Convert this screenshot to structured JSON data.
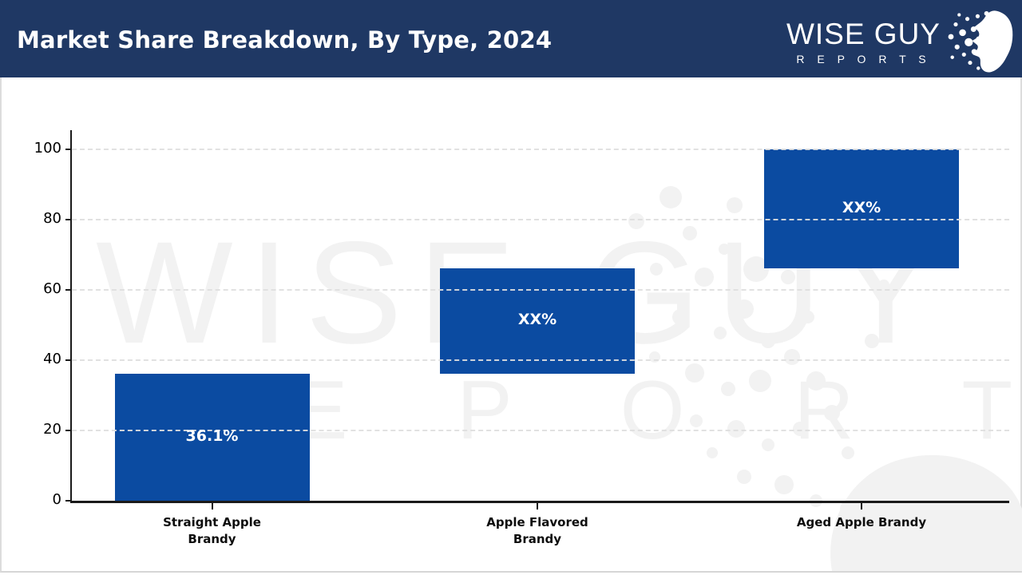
{
  "header": {
    "title": "Market Share Breakdown, By Type, 2024",
    "brand": {
      "name": "WISE GUY",
      "tagline": "R E P O R T S"
    }
  },
  "watermark": {
    "text": "WISE GUY",
    "tagline": "R E P O R T S"
  },
  "colors": {
    "header_bg": "#1f3864",
    "bar": "#0b4ba1",
    "bar_label": "#ffffff",
    "grid": "#dedede",
    "axis": "#1a1a1a",
    "watermark": "#f2f2f2"
  },
  "chart_data": {
    "type": "bar",
    "subtype": "waterfall",
    "title": "Market Share Breakdown, By Type, 2024",
    "categories": [
      "Straight Apple Brandy",
      "Apple Flavored Brandy",
      "Aged Apple Brandy"
    ],
    "category_lines": [
      [
        "Straight Apple",
        "Brandy"
      ],
      [
        "Apple Flavored",
        "Brandy"
      ],
      [
        "Aged Apple Brandy"
      ]
    ],
    "segments": [
      {
        "category": "Straight Apple Brandy",
        "start": 0,
        "end": 36.1,
        "value": 36.1,
        "label": "36.1%"
      },
      {
        "category": "Apple Flavored Brandy",
        "start": 36.1,
        "end": 66.1,
        "value": 30.0,
        "label": "XX%"
      },
      {
        "category": "Aged Apple Brandy",
        "start": 66.1,
        "end": 100,
        "value": 33.9,
        "label": "XX%"
      }
    ],
    "value_labels": [
      "36.1%",
      "XX%",
      "XX%"
    ],
    "xlabel": "",
    "ylabel": "",
    "ylim": [
      0,
      100
    ],
    "yticks": [
      0,
      20,
      40,
      60,
      80,
      100
    ],
    "grid": "horizontal-dashed",
    "legend": "none",
    "bar_color": "#0b4ba1",
    "label_color": "#ffffff"
  }
}
